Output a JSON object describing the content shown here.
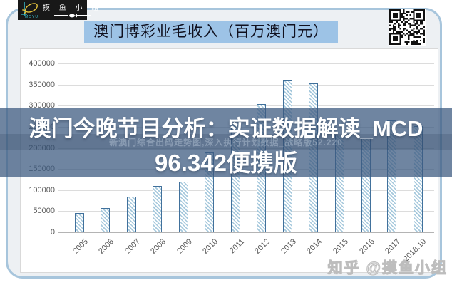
{
  "brand": {
    "logo_text": "摸 鱼 小 组",
    "logo_sub": "MOYU"
  },
  "header": {
    "title": "澳门博彩业毛收入（百万澳门元）"
  },
  "overlay": {
    "line1": "澳门今晚节目分析：实证数据解读_MCD",
    "line2": "96.342便携版",
    "watermark_line": "新澳门综合出码走势图,深入执行计划数据_战略版52.220"
  },
  "watermark": {
    "text": "知乎 @摸鱼小组"
  },
  "chart_data": {
    "type": "bar",
    "title": "澳门博彩业毛收入（百万澳门元）",
    "categories": [
      "2005",
      "2006",
      "2007",
      "2008",
      "2009",
      "2010",
      "2011",
      "2012",
      "2013",
      "2014",
      "2015",
      "2016",
      "2017",
      "2018.10"
    ],
    "values": [
      46000,
      57500,
      83800,
      110000,
      120400,
      188300,
      267900,
      304100,
      360700,
      352700,
      230800,
      223200,
      265700,
      252000
    ],
    "xlabel": "",
    "ylabel": "",
    "ylim": [
      0,
      400000
    ],
    "ytick_step": 50000,
    "ytick_labels": [
      "0",
      "50000",
      "100000",
      "150000",
      "200000",
      "250000",
      "300000",
      "350000",
      "400000"
    ],
    "grid": true,
    "legend": false,
    "bar_style": "diagonal-hatch"
  },
  "colors": {
    "title_highlight": "#9dc3e6",
    "frame_border": "#a7c5dc",
    "frame_fill": "#edf0f3",
    "bar_border": "#41719c",
    "bar_hatch": "#a5c8dc",
    "overlay_band": "#3d5b80",
    "gridline": "#dcdcdc",
    "axis_text": "#595959",
    "logo_bg": "#181818",
    "logo_accent_cyan": "#39c3d6",
    "logo_accent_yellow": "#e3c23c"
  }
}
